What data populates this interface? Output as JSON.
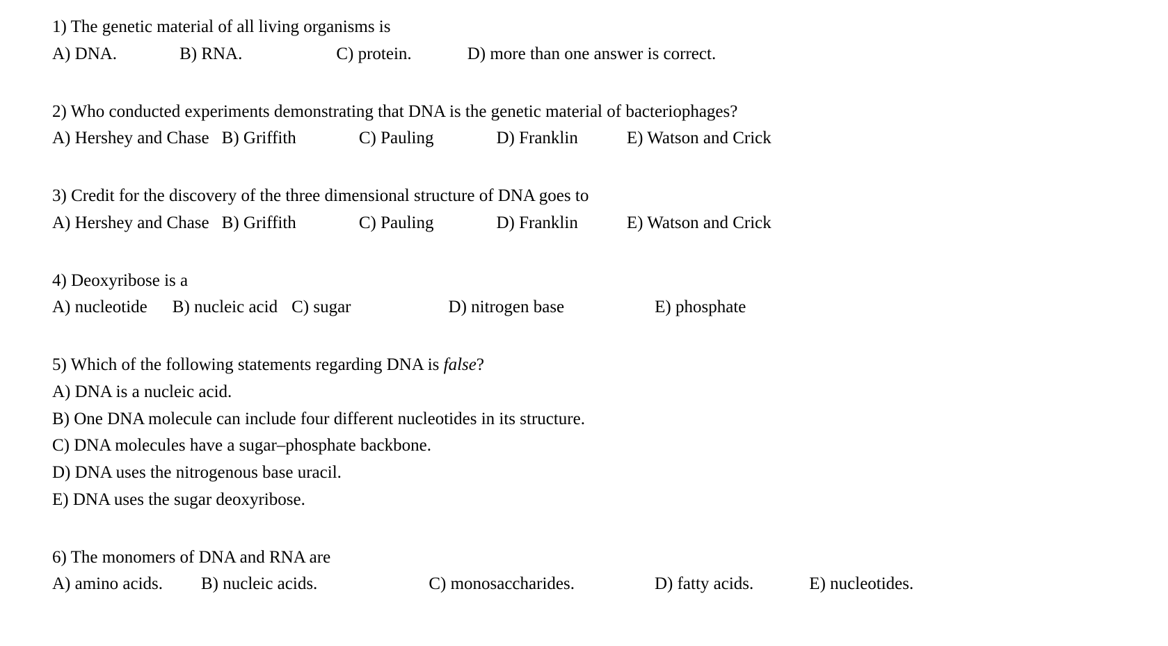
{
  "font": {
    "family": "Palatino Linotype, Book Antiqua, Palatino, Georgia, serif",
    "size_pt": 19,
    "color": "#000000"
  },
  "background_color": "#ffffff",
  "questions": [
    {
      "number": "1)",
      "text": "The genetic material of all living organisms is",
      "layout": "row",
      "options": [
        {
          "label": "A)",
          "text": "DNA.",
          "gap_after": 90
        },
        {
          "label": "B)",
          "text": "RNA.",
          "gap_after": 135
        },
        {
          "label": "C)",
          "text": "protein.",
          "gap_after": 80
        },
        {
          "label": "D)",
          "text": "more than one answer is correct.",
          "gap_after": 0
        }
      ]
    },
    {
      "number": "2)",
      "text": "Who conducted experiments demonstrating that DNA is the genetic material of bacteriophages?",
      "layout": "row",
      "options": [
        {
          "label": "A)",
          "text": "Hershey and Chase",
          "gap_after": 18
        },
        {
          "label": "B)",
          "text": "Griffith",
          "gap_after": 90
        },
        {
          "label": "C)",
          "text": "Pauling",
          "gap_after": 90
        },
        {
          "label": "D)",
          "text": "Franklin",
          "gap_after": 70
        },
        {
          "label": "E)",
          "text": "Watson and Crick",
          "gap_after": 0
        }
      ]
    },
    {
      "number": "3)",
      "text": "Credit for the discovery of the three dimensional structure of DNA goes to",
      "layout": "row",
      "options": [
        {
          "label": "A)",
          "text": "Hershey and Chase",
          "gap_after": 18
        },
        {
          "label": "B)",
          "text": "Griffith",
          "gap_after": 90
        },
        {
          "label": "C)",
          "text": "Pauling",
          "gap_after": 90
        },
        {
          "label": "D)",
          "text": "Franklin",
          "gap_after": 70
        },
        {
          "label": "E)",
          "text": "Watson and Crick",
          "gap_after": 0
        }
      ]
    },
    {
      "number": "4)",
      "text": "Deoxyribose is a",
      "layout": "row",
      "options": [
        {
          "label": "A)",
          "text": "nucleotide",
          "gap_after": 36
        },
        {
          "label": "B)",
          "text": "nucleic acid",
          "gap_after": 20
        },
        {
          "label": "C)",
          "text": "sugar",
          "gap_after": 140
        },
        {
          "label": "D)",
          "text": "nitrogen base",
          "gap_after": 130
        },
        {
          "label": "E)",
          "text": "phosphate",
          "gap_after": 0
        }
      ]
    },
    {
      "number": "5)",
      "text_parts": [
        {
          "t": "Which of the following statements regarding DNA is ",
          "italic": false
        },
        {
          "t": "false",
          "italic": true
        },
        {
          "t": "?",
          "italic": false
        }
      ],
      "layout": "column",
      "options": [
        {
          "label": "A)",
          "text": "DNA is a nucleic acid."
        },
        {
          "label": "B)",
          "text": "One DNA molecule can include four different nucleotides in its structure."
        },
        {
          "label": "C)",
          "text": "DNA molecules have a sugar–phosphate backbone."
        },
        {
          "label": "D)",
          "text": "DNA uses the nitrogenous base uracil."
        },
        {
          "label": "E)",
          "text": "DNA uses the sugar deoxyribose."
        }
      ]
    },
    {
      "number": "6)",
      "text": "The monomers of DNA and RNA are",
      "layout": "row",
      "options": [
        {
          "label": "A)",
          "text": "amino acids.",
          "gap_after": 55
        },
        {
          "label": "B)",
          "text": "nucleic acids.",
          "gap_after": 160
        },
        {
          "label": "C)",
          "text": "monosaccharides.",
          "gap_after": 115
        },
        {
          "label": "D)",
          "text": "fatty acids.",
          "gap_after": 80
        },
        {
          "label": "E)",
          "text": "nucleotides.",
          "gap_after": 0
        }
      ]
    }
  ]
}
